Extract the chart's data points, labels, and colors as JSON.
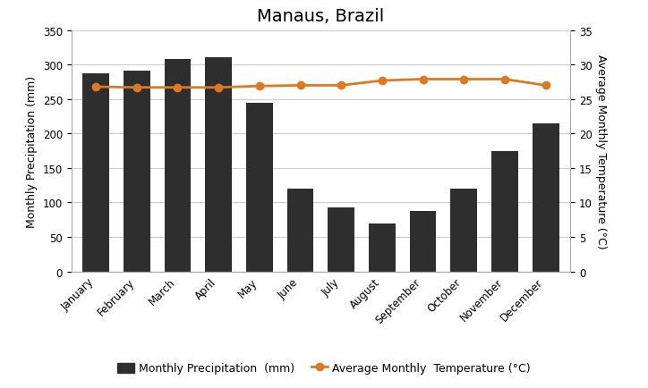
{
  "title": "Manaus, Brazil",
  "months": [
    "January",
    "February",
    "March",
    "April",
    "May",
    "June",
    "July",
    "August",
    "September",
    "October",
    "November",
    "December"
  ],
  "precipitation": [
    288,
    291,
    308,
    311,
    245,
    120,
    93,
    69,
    88,
    120,
    175,
    215
  ],
  "temp_values": [
    26.8,
    26.7,
    26.7,
    26.7,
    26.9,
    27.0,
    27.0,
    27.7,
    27.9,
    27.9,
    27.9,
    27.0
  ],
  "bar_color": "#2e2e2e",
  "line_color": "#e07820",
  "marker_color": "#e07820",
  "background_color": "#ffffff",
  "grid_color": "#cccccc",
  "ylim_left": [
    0,
    350
  ],
  "ylim_right": [
    0,
    35
  ],
  "yticks_left": [
    0,
    50,
    100,
    150,
    200,
    250,
    300,
    350
  ],
  "yticks_right": [
    0,
    5,
    10,
    15,
    20,
    25,
    30,
    35
  ],
  "ylabel_left": "Monthly Precipitation (mm)",
  "ylabel_right": "Average Monthly Temperature (°C)",
  "legend_precip": "Monthly Precipitation  (mm)",
  "legend_temp": "Average Monthly  Temperature (°C)",
  "title_fontsize": 14,
  "label_fontsize": 9,
  "tick_fontsize": 8.5,
  "legend_fontsize": 9
}
